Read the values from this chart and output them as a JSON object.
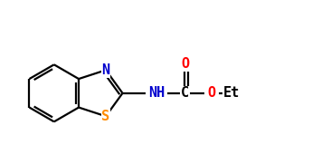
{
  "bg_color": "#ffffff",
  "line_color": "#000000",
  "atom_colors": {
    "N": "#0000cd",
    "S": "#ff8c00",
    "O": "#ff0000",
    "C": "#000000",
    "H": "#000000"
  },
  "line_width": 1.6,
  "font_size_atom": 11,
  "fig_width": 3.45,
  "fig_height": 1.81,
  "dpi": 100
}
